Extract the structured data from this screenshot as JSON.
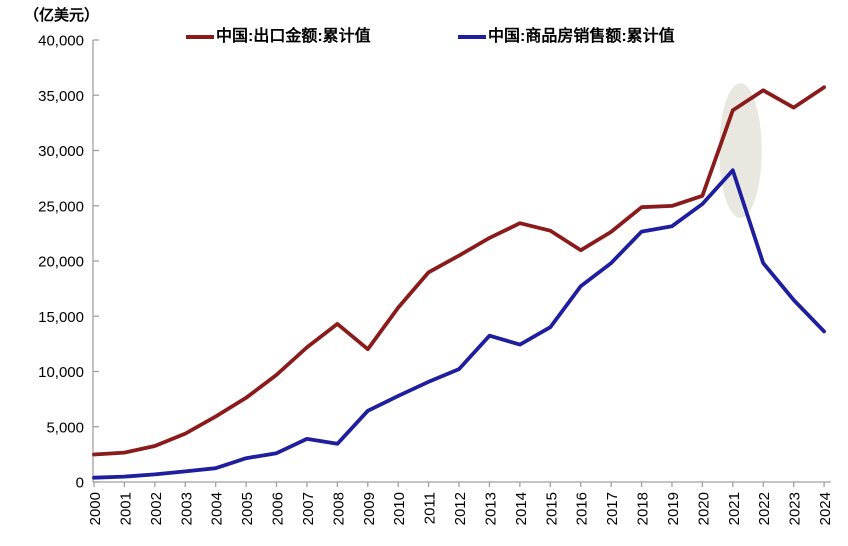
{
  "chart_data": {
    "type": "line",
    "y_axis_title": "（亿美元）",
    "x": [
      2000,
      2001,
      2002,
      2003,
      2004,
      2005,
      2006,
      2007,
      2008,
      2009,
      2010,
      2011,
      2012,
      2013,
      2014,
      2015,
      2016,
      2017,
      2018,
      2019,
      2020,
      2021,
      2022,
      2023,
      2024
    ],
    "series": [
      {
        "name": "中国:出口金额:累计值",
        "color": "#8B1A1A",
        "values": [
          2490,
          2660,
          3260,
          4380,
          5930,
          7620,
          9690,
          12180,
          14310,
          12020,
          15780,
          18980,
          20490,
          22090,
          23420,
          22740,
          20980,
          22630,
          24870,
          24990,
          25900,
          33640,
          35450,
          33880,
          35720
        ]
      },
      {
        "name": "中国:商品房销售额:累计值",
        "color": "#1E1E9E",
        "values": [
          390,
          490,
          690,
          960,
          1250,
          2150,
          2610,
          3900,
          3460,
          6440,
          7790,
          9070,
          10220,
          13240,
          12430,
          14010,
          17710,
          19810,
          22660,
          23150,
          25160,
          28210,
          19810,
          16470,
          13630
        ]
      }
    ],
    "ylim": [
      0,
      40000
    ],
    "y_ticks": [
      {
        "value": 0,
        "label": "0"
      },
      {
        "value": 5000,
        "label": "5,000"
      },
      {
        "value": 10000,
        "label": "10,000"
      },
      {
        "value": 15000,
        "label": "15,000"
      },
      {
        "value": 20000,
        "label": "20,000"
      },
      {
        "value": 25000,
        "label": "25,000"
      },
      {
        "value": 30000,
        "label": "30,000"
      },
      {
        "value": 35000,
        "label": "35,000"
      },
      {
        "value": 40000,
        "label": "40,000"
      }
    ],
    "grid": false,
    "legend_position": "top",
    "axis_color": "#A0A0A0",
    "highlight": {
      "shape": "ellipse",
      "center_year": 2021.25,
      "center_value": 30000,
      "rx_years": 0.7,
      "ry_value": 6100,
      "fill": "#E8E8E0"
    }
  }
}
